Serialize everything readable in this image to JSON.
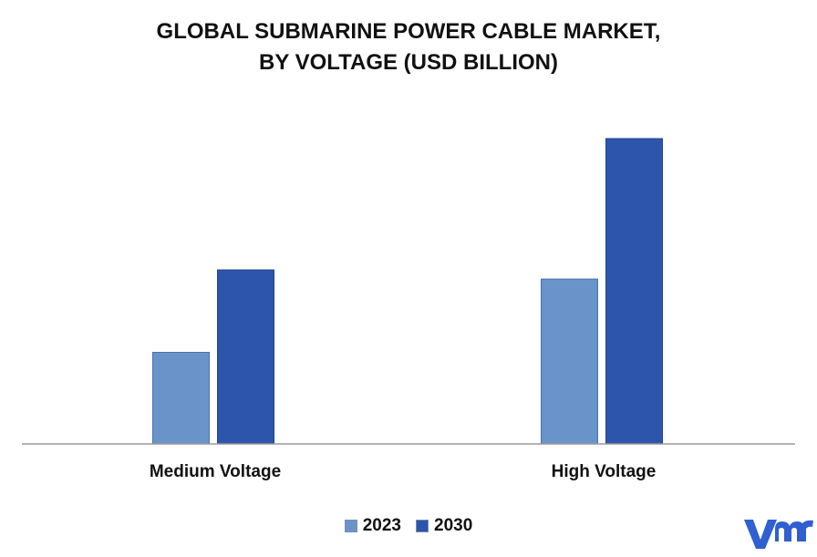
{
  "title_line1": "GLOBAL SUBMARINE POWER CABLE MARKET,",
  "title_line2": "BY VOLTAGE (USD BILLION)",
  "logo_text": "vmr",
  "colors": {
    "series_2023": "#6a93c9",
    "series_2030": "#2d55ab",
    "axis": "#9a9a9a",
    "logo": "#2f5fd0"
  },
  "chart_data": {
    "type": "bar",
    "title": "GLOBAL SUBMARINE POWER CABLE MARKET, BY VOLTAGE (USD BILLION)",
    "categories": [
      "Medium Voltage",
      "High Voltage"
    ],
    "series": [
      {
        "name": "2023",
        "values": [
          3.0,
          5.4
        ]
      },
      {
        "name": "2030",
        "values": [
          5.7,
          10.0
        ]
      }
    ],
    "ylim": [
      0,
      11.5
    ],
    "grid": false,
    "legend": "bottom-center"
  }
}
